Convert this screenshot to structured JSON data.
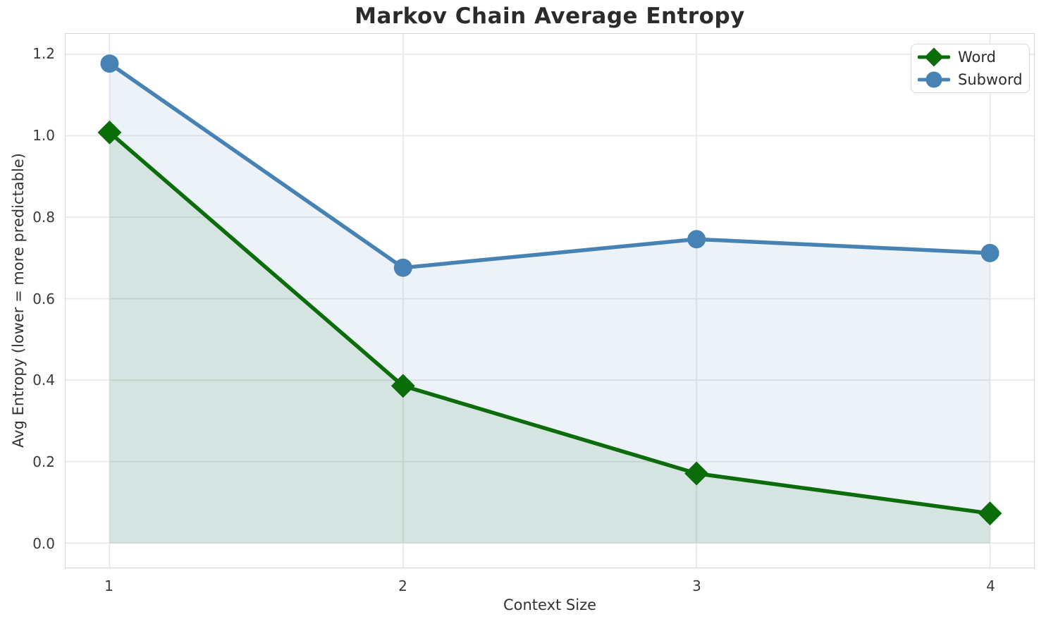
{
  "title": "Markov Chain Average Entropy",
  "chart_data": {
    "type": "line",
    "title": "Markov Chain Average Entropy",
    "xlabel": "Context Size",
    "ylabel": "Avg Entropy (lower = more predictable)",
    "x": [
      1,
      2,
      3,
      4
    ],
    "series": [
      {
        "name": "Word",
        "values": [
          1.008,
          0.386,
          0.171,
          0.073
        ],
        "color": "#0a6d0a",
        "marker": "diamond",
        "fill_to_zero": true,
        "fill_opacity": 0.1
      },
      {
        "name": "Subword",
        "values": [
          1.177,
          0.676,
          0.746,
          0.712
        ],
        "color": "#4682b4",
        "marker": "circle",
        "fill_to_zero": true,
        "fill_opacity": 0.1
      }
    ],
    "xlim": [
      0.85,
      4.15
    ],
    "ylim": [
      -0.06,
      1.25
    ],
    "xticks": [
      1,
      2,
      3,
      4
    ],
    "xticklabels": [
      "1",
      "2",
      "3",
      "4"
    ],
    "yticks": [
      0.0,
      0.2,
      0.4,
      0.6,
      0.8,
      1.0,
      1.2
    ],
    "yticklabels": [
      "0.0",
      "0.2",
      "0.4",
      "0.6",
      "0.8",
      "1.0",
      "1.2"
    ],
    "grid": true,
    "legend_position": "upper right"
  },
  "style": {
    "grid_color": "#e9e9e9",
    "spine_color": "#d4d4d4",
    "title_color": "#2b2b2b",
    "tick_color": "#3a3a3a",
    "label_color": "#333333",
    "background": "#ffffff",
    "line_width": 5.5,
    "circle_radius": 13,
    "diamond_half": 17
  }
}
